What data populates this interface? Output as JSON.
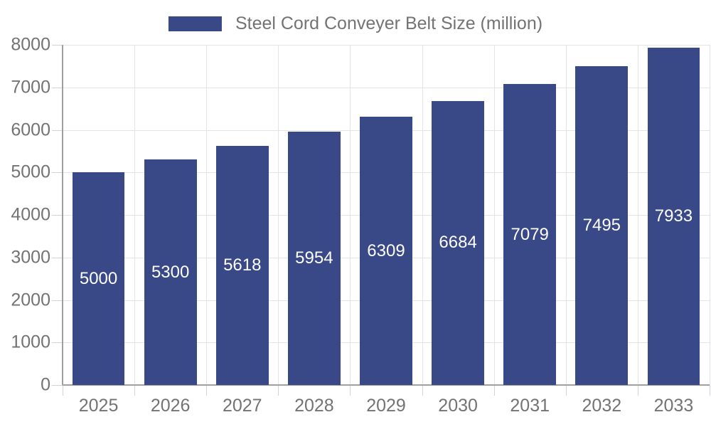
{
  "legend": {
    "label": "Steel Cord Conveyer Belt Size (million)"
  },
  "chart_data": {
    "type": "bar",
    "title": "Steel Cord Conveyer Belt Size (million)",
    "categories": [
      "2025",
      "2026",
      "2027",
      "2028",
      "2029",
      "2030",
      "2031",
      "2032",
      "2033"
    ],
    "values": [
      5000,
      5300,
      5618,
      5954,
      6309,
      6684,
      7079,
      7495,
      7933
    ],
    "value_labels": [
      "5000",
      "5300",
      "5618",
      "5954",
      "6309",
      "6684",
      "7079",
      "7495",
      "7933"
    ],
    "xlabel": "",
    "ylabel": "",
    "ylim": [
      0,
      8000
    ],
    "yticks": [
      "0",
      "1000",
      "2000",
      "3000",
      "4000",
      "5000",
      "6000",
      "7000",
      "8000"
    ],
    "grid": "horizontal and vertical light gridlines",
    "legend_position": "top-center",
    "value_label_position": "inside-center-white"
  },
  "colors": {
    "bar": "#394988",
    "grid": "#E3E3E8",
    "tick": "#D2D2D8",
    "axis": "#A0A0A0",
    "tick_text": "#737373",
    "value_label_text": "#FFFFFF",
    "background": "#FFFFFF"
  }
}
